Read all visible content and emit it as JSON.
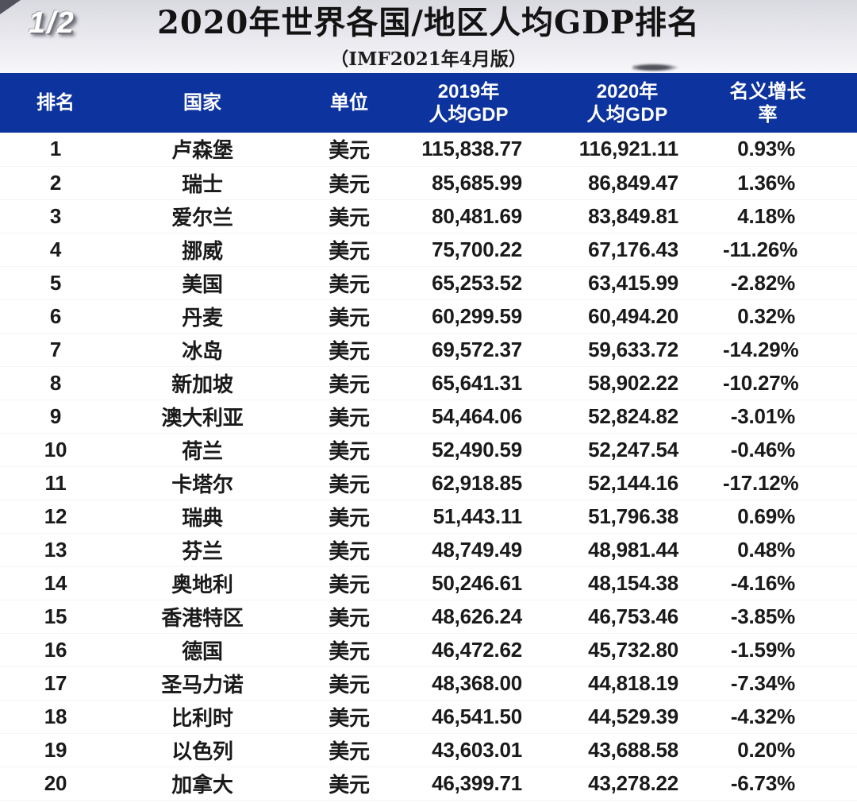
{
  "page_indicator": "1/2",
  "title": "2020年世界各国/地区人均GDP排名",
  "subtitle": "（IMF2021年4月版）",
  "colors": {
    "header_bg": "#0d339e",
    "header_text": "#ffffff",
    "body_text": "#1a1a1a",
    "title_bg_top": "#d9d9e0"
  },
  "table": {
    "headers": {
      "rank": "排名",
      "country": "国家",
      "unit": "单位",
      "gdp2019_line1": "2019年",
      "gdp2019_line2": "人均GDP",
      "gdp2020_line1": "2020年",
      "gdp2020_line2": "人均GDP",
      "growth": "名义增长率"
    },
    "rows": [
      {
        "rank": "1",
        "country": "卢森堡",
        "unit": "美元",
        "gdp2019": "115,838.77",
        "gdp2020": "116,921.11",
        "growth": "0.93%"
      },
      {
        "rank": "2",
        "country": "瑞士",
        "unit": "美元",
        "gdp2019": "85,685.99",
        "gdp2020": "86,849.47",
        "growth": "1.36%"
      },
      {
        "rank": "3",
        "country": "爱尔兰",
        "unit": "美元",
        "gdp2019": "80,481.69",
        "gdp2020": "83,849.81",
        "growth": "4.18%"
      },
      {
        "rank": "4",
        "country": "挪威",
        "unit": "美元",
        "gdp2019": "75,700.22",
        "gdp2020": "67,176.43",
        "growth": "-11.26%"
      },
      {
        "rank": "5",
        "country": "美国",
        "unit": "美元",
        "gdp2019": "65,253.52",
        "gdp2020": "63,415.99",
        "growth": "-2.82%"
      },
      {
        "rank": "6",
        "country": "丹麦",
        "unit": "美元",
        "gdp2019": "60,299.59",
        "gdp2020": "60,494.20",
        "growth": "0.32%"
      },
      {
        "rank": "7",
        "country": "冰岛",
        "unit": "美元",
        "gdp2019": "69,572.37",
        "gdp2020": "59,633.72",
        "growth": "-14.29%"
      },
      {
        "rank": "8",
        "country": "新加坡",
        "unit": "美元",
        "gdp2019": "65,641.31",
        "gdp2020": "58,902.22",
        "growth": "-10.27%"
      },
      {
        "rank": "9",
        "country": "澳大利亚",
        "unit": "美元",
        "gdp2019": "54,464.06",
        "gdp2020": "52,824.82",
        "growth": "-3.01%"
      },
      {
        "rank": "10",
        "country": "荷兰",
        "unit": "美元",
        "gdp2019": "52,490.59",
        "gdp2020": "52,247.54",
        "growth": "-0.46%"
      },
      {
        "rank": "11",
        "country": "卡塔尔",
        "unit": "美元",
        "gdp2019": "62,918.85",
        "gdp2020": "52,144.16",
        "growth": "-17.12%"
      },
      {
        "rank": "12",
        "country": "瑞典",
        "unit": "美元",
        "gdp2019": "51,443.11",
        "gdp2020": "51,796.38",
        "growth": "0.69%"
      },
      {
        "rank": "13",
        "country": "芬兰",
        "unit": "美元",
        "gdp2019": "48,749.49",
        "gdp2020": "48,981.44",
        "growth": "0.48%"
      },
      {
        "rank": "14",
        "country": "奥地利",
        "unit": "美元",
        "gdp2019": "50,246.61",
        "gdp2020": "48,154.38",
        "growth": "-4.16%"
      },
      {
        "rank": "15",
        "country": "香港特区",
        "unit": "美元",
        "gdp2019": "48,626.24",
        "gdp2020": "46,753.46",
        "growth": "-3.85%"
      },
      {
        "rank": "16",
        "country": "德国",
        "unit": "美元",
        "gdp2019": "46,472.62",
        "gdp2020": "45,732.80",
        "growth": "-1.59%"
      },
      {
        "rank": "17",
        "country": "圣马力诺",
        "unit": "美元",
        "gdp2019": "48,368.00",
        "gdp2020": "44,818.19",
        "growth": "-7.34%"
      },
      {
        "rank": "18",
        "country": "比利时",
        "unit": "美元",
        "gdp2019": "46,541.50",
        "gdp2020": "44,529.39",
        "growth": "-4.32%"
      },
      {
        "rank": "19",
        "country": "以色列",
        "unit": "美元",
        "gdp2019": "43,603.01",
        "gdp2020": "43,688.58",
        "growth": "0.20%"
      },
      {
        "rank": "20",
        "country": "加拿大",
        "unit": "美元",
        "gdp2019": "46,399.71",
        "gdp2020": "43,278.22",
        "growth": "-6.73%"
      }
    ]
  }
}
